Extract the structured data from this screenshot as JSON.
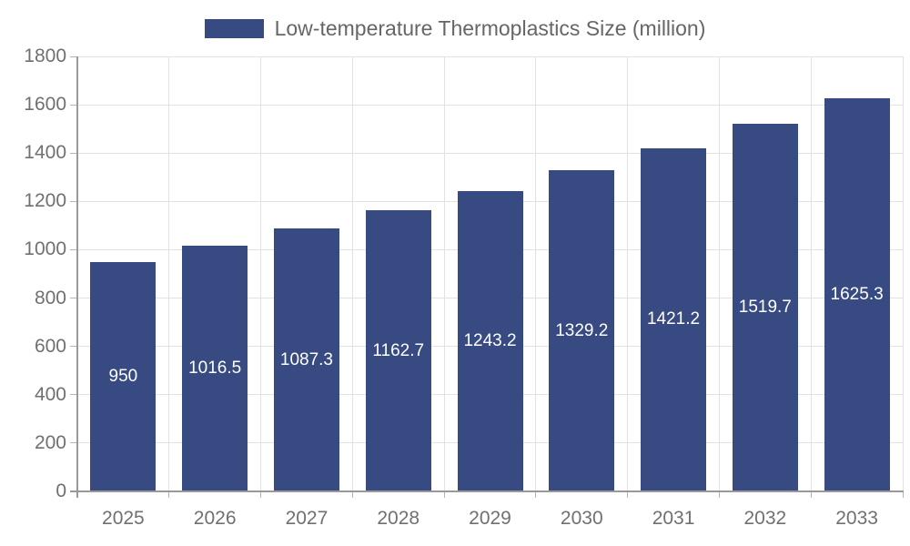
{
  "legend": {
    "series_label": "Low-temperature Thermoplastics Size (million)"
  },
  "chart_data": {
    "type": "bar",
    "title": "Low-temperature Thermoplastics Size (million)",
    "categories": [
      "2025",
      "2026",
      "2027",
      "2028",
      "2029",
      "2030",
      "2031",
      "2032",
      "2033"
    ],
    "values": [
      950,
      1016.5,
      1087.3,
      1162.7,
      1243.2,
      1329.2,
      1421.2,
      1519.7,
      1625.3
    ],
    "value_labels": [
      "950",
      "1016.5",
      "1087.3",
      "1162.7",
      "1243.2",
      "1329.2",
      "1421.2",
      "1519.7",
      "1625.3"
    ],
    "xlabel": "",
    "ylabel": "",
    "ylim": [
      0,
      1800
    ],
    "ytick_step": 200,
    "ytick_labels": [
      "0",
      "200",
      "400",
      "600",
      "800",
      "1000",
      "1200",
      "1400",
      "1600",
      "1800"
    ],
    "grid": true,
    "legend_position": "top-center",
    "value_label_position": "inside-center",
    "colors": {
      "bar": "#374a82",
      "grid_line": "#e2e2e2",
      "axis_line": "#999999",
      "tick_line": "#b3b3b3",
      "axis_text": "#707070",
      "legend_text": "#666666",
      "value_label_text": "#ffffff",
      "background": "#ffffff"
    }
  }
}
